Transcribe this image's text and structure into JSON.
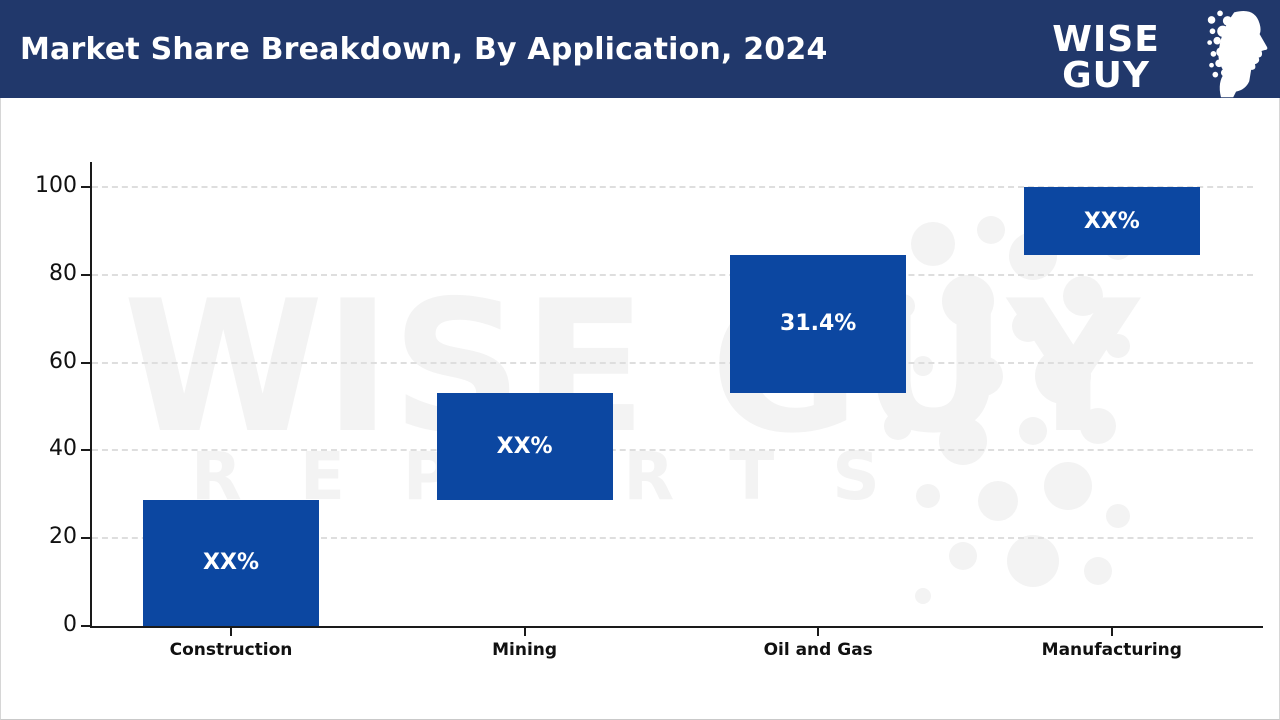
{
  "header": {
    "title": "Market Share Breakdown, By Application, 2024",
    "bg_color": "#21386b",
    "logo": {
      "line1": "WISE GUY",
      "line2": "REPORTS"
    }
  },
  "watermark": {
    "line1": "WISE GUY",
    "line2": "REPORTS"
  },
  "chart_data": {
    "type": "bar",
    "subtype": "waterfall",
    "title": "Market Share Breakdown, By Application, 2024",
    "categories": [
      "Construction",
      "Mining",
      "Oil and Gas",
      "Manufacturing"
    ],
    "segments": [
      {
        "category": "Construction",
        "start": 0,
        "end": 28.8,
        "label": "XX%"
      },
      {
        "category": "Mining",
        "start": 28.8,
        "end": 53.1,
        "label": "XX%"
      },
      {
        "category": "Oil and Gas",
        "start": 53.1,
        "end": 84.5,
        "label": "31.4%"
      },
      {
        "category": "Manufacturing",
        "start": 84.5,
        "end": 100,
        "label": "XX%"
      }
    ],
    "y_ticks": [
      0,
      20,
      40,
      60,
      80,
      100
    ],
    "ylim": [
      0,
      105
    ],
    "xlabel": "",
    "ylabel": "",
    "grid": "horizontal-dashed",
    "legend": "none",
    "bar_color": "#0c47a1",
    "bar_label_color": "#ffffff",
    "axis_color": "#1a1a1a",
    "gridline_color": "#dedede"
  }
}
